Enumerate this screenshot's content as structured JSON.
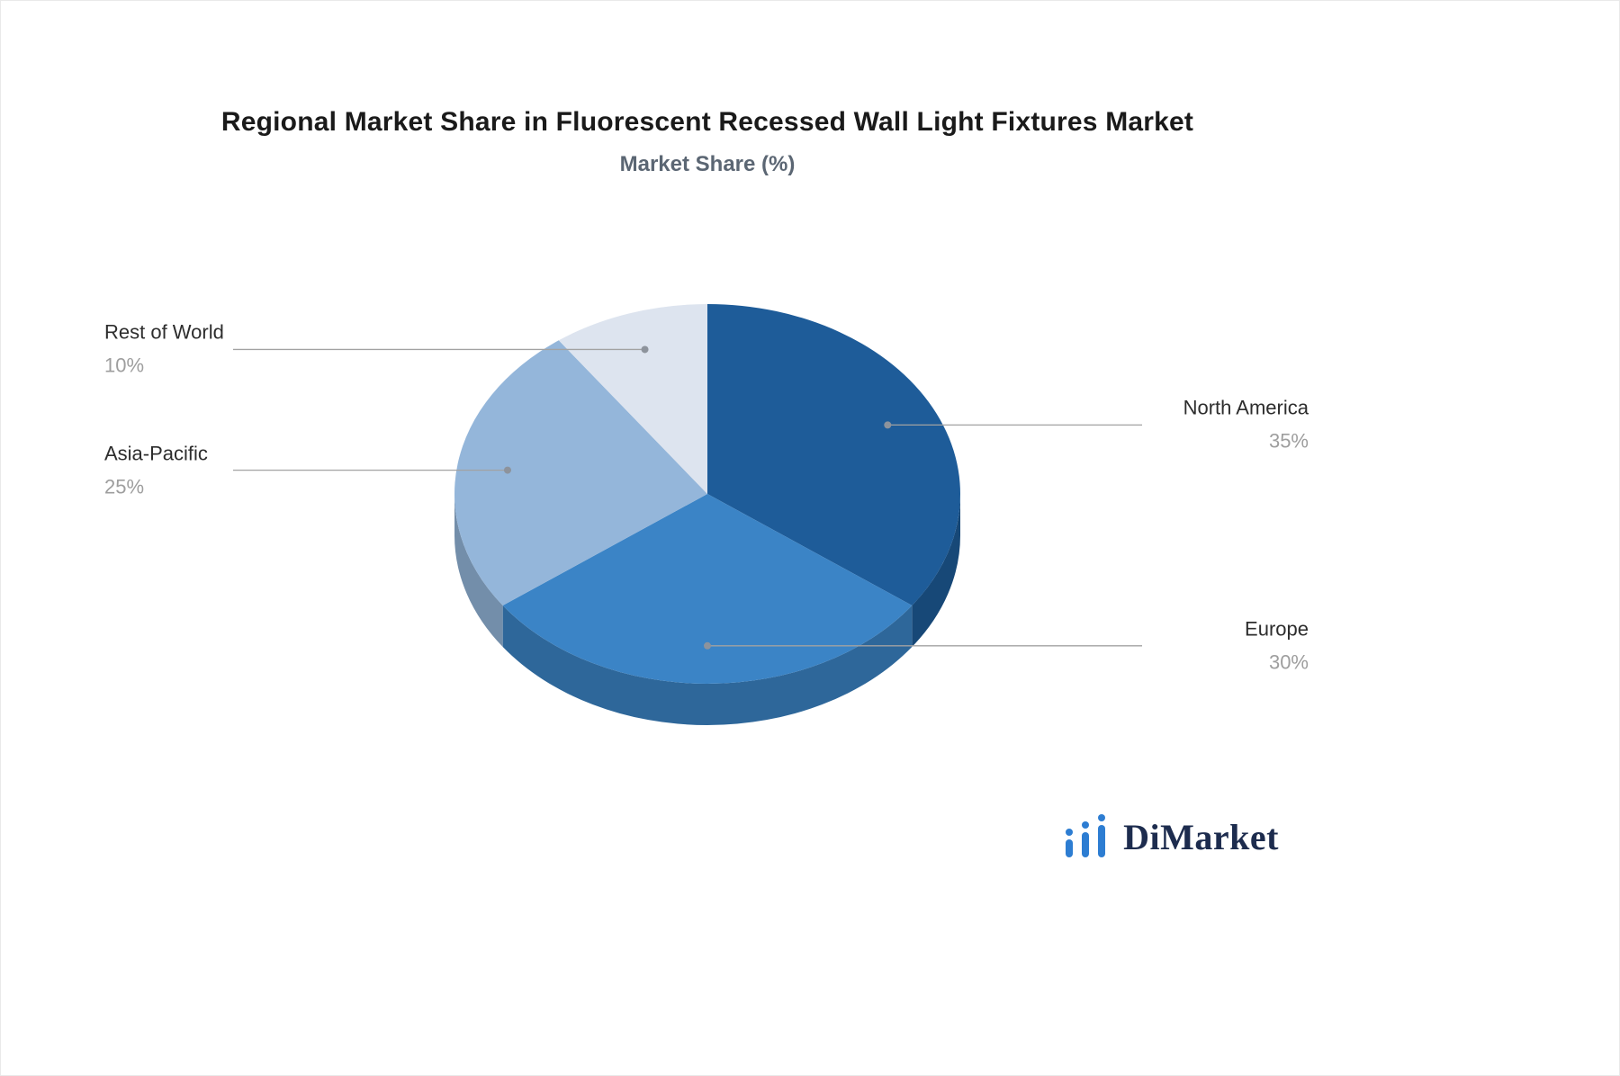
{
  "header": {
    "title": "Regional Market Share in Fluorescent Recessed Wall Light Fixtures Market",
    "subtitle": "Market Share (%)"
  },
  "chart_data": {
    "type": "pie",
    "title": "Regional Market Share in Fluorescent Recessed Wall Light Fixtures Market",
    "subtitle": "Market Share (%)",
    "unit": "%",
    "style": "3d",
    "start_angle_deg": 0,
    "direction": "clockwise",
    "legend_position": "none",
    "categories": [
      "North America",
      "Europe",
      "Asia-Pacific",
      "Rest of World"
    ],
    "values": [
      35,
      30,
      25,
      10
    ],
    "value_labels": [
      "35%",
      "30%",
      "25%",
      "10%"
    ],
    "colors": [
      "#1e5c99",
      "#3b84c6",
      "#94b6da",
      "#dde4ef"
    ]
  },
  "callouts": [
    {
      "label": "North America",
      "value": "35%",
      "side": "right"
    },
    {
      "label": "Europe",
      "value": "30%",
      "side": "right"
    },
    {
      "label": "Asia-Pacific",
      "value": "25%",
      "side": "left"
    },
    {
      "label": "Rest of World",
      "value": "10%",
      "side": "left"
    }
  ],
  "branding": {
    "name": "DiMarket",
    "icon": "bar-chart-dots-icon",
    "icon_color": "#2d7dd2",
    "text_color": "#1d2c4e"
  },
  "style_colors": {
    "title": "#1a1a1a",
    "subtitle": "#5b6673",
    "callout_label": "#2d2d2d",
    "callout_value": "#9e9e9e",
    "leader_line": "#a2a2a2",
    "background": "#ffffff"
  }
}
